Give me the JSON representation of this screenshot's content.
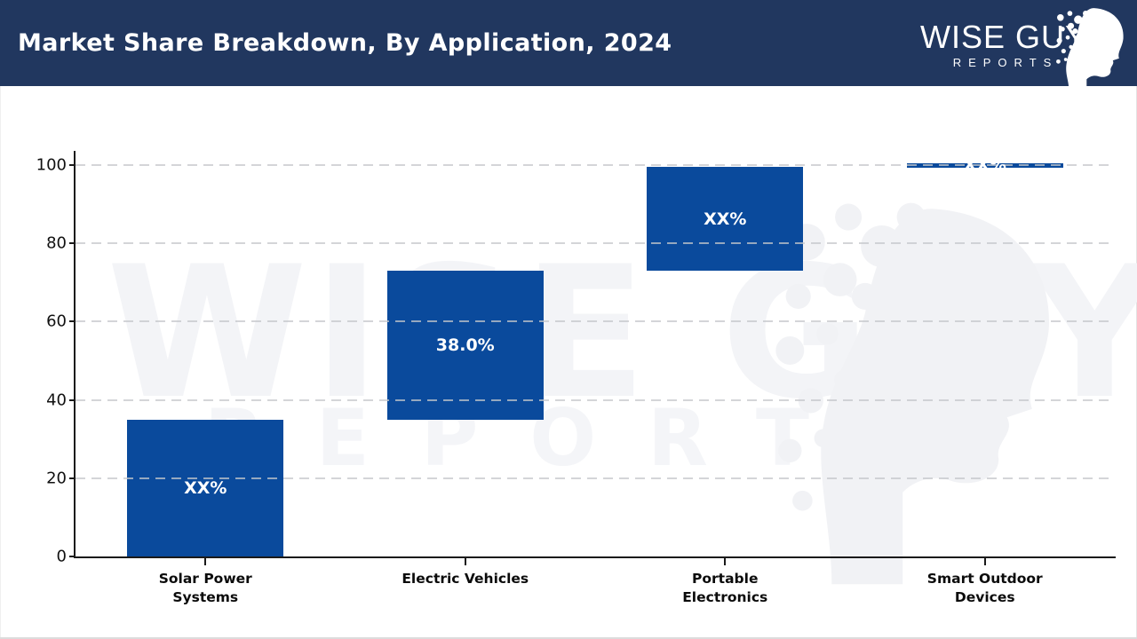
{
  "header": {
    "title": "Market Share Breakdown, By Application, 2024",
    "logo_line1": "WISE GUY",
    "logo_line2": "REPORTS"
  },
  "watermark": {
    "line1": "WISE GUY",
    "line2": "REPORTS"
  },
  "colors": {
    "header_bg": "#21375f",
    "bar": "#0a4a9c",
    "bar_label": "#ffffff",
    "axis": "#1a1a1a",
    "gridline": "#c5c7cb",
    "watermark": "#f3f4f7"
  },
  "chart_data": {
    "type": "bar",
    "subtype": "stacked-waterfall",
    "title": "Market Share Breakdown, By Application, 2024",
    "categories": [
      "Solar Power Systems",
      "Electric Vehicles",
      "Portable Electronics",
      "Smart Outdoor Devices"
    ],
    "categories_lines": [
      [
        "Solar Power",
        "Systems"
      ],
      [
        "Electric Vehicles"
      ],
      [
        "Portable",
        "Electronics"
      ],
      [
        "Smart Outdoor",
        "Devices"
      ]
    ],
    "values": [
      35,
      38,
      27,
      0
    ],
    "segments": [
      {
        "category": "Solar Power Systems",
        "start": 0,
        "end": 35,
        "label": "XX%"
      },
      {
        "category": "Electric Vehicles",
        "start": 35,
        "end": 73,
        "label": "38.0%"
      },
      {
        "category": "Portable Electronics",
        "start": 73,
        "end": 99.5,
        "label": "XX%"
      },
      {
        "category": "Smart Outdoor Devices",
        "start": 100,
        "end": 100,
        "label": "XX%"
      }
    ],
    "xlabel": "",
    "ylabel": "",
    "yticks": [
      0,
      20,
      40,
      60,
      80,
      100
    ],
    "ylim": [
      0,
      105
    ],
    "grid": "horizontal dashed",
    "legend": "none",
    "bar_color": "#0a4a9c"
  }
}
